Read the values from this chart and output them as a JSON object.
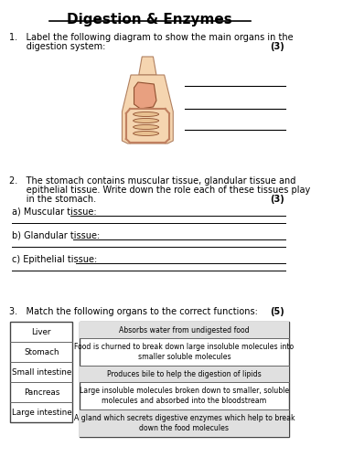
{
  "title": "Digestion & Enzymes",
  "bg_color": "#ffffff",
  "q1_line1": "1.   Label the following diagram to show the main organs in the",
  "q1_line2": "      digestion system:",
  "q1_marks": "(3)",
  "q2_line1": "2.   The stomach contains muscular tissue, glandular tissue and",
  "q2_line2": "      epithelial tissue. Write down the role each of these tissues play",
  "q2_line3": "      in the stomach.",
  "q2_marks": "(3)",
  "q2_a": "a) Muscular tissue: ",
  "q2_b": "b) Glandular tissue: ",
  "q2_c": "c) Epithelial tissue: ",
  "q3_line": "3.   Match the following organs to the correct functions:",
  "q3_marks": "(5)",
  "organs": [
    "Liver",
    "Stomach",
    "Small intestine",
    "Pancreas",
    "Large intestine"
  ],
  "functions": [
    "Absorbs water from undigested food",
    "Food is churned to break down large insoluble molecules into\nsmaller soluble molecules",
    "Produces bile to help the digestion of lipids",
    "Large insoluble molecules broken down to smaller, soluble\nmolecules and absorbed into the bloodstream",
    "A gland which secrets digestive enzymes which help to break\ndown the food molecules"
  ],
  "func_heights": [
    18,
    30,
    18,
    30,
    30
  ],
  "skin_color": "#f5d5b0",
  "organ_color": "#e8a080",
  "intestine_color": "#e8c090",
  "li_color": "#d4956a"
}
